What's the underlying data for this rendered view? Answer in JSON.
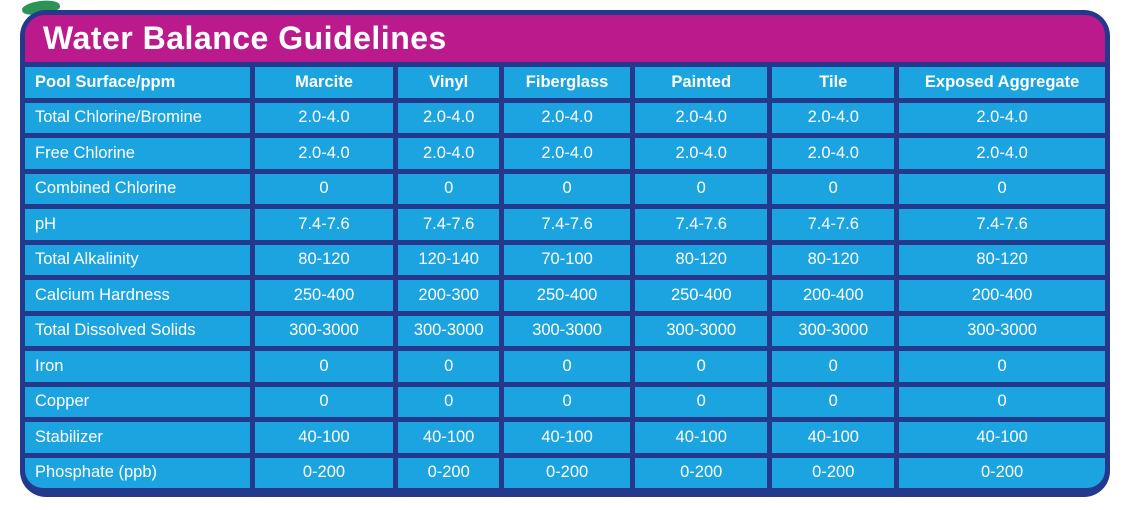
{
  "title": "Water Balance Guidelines",
  "colors": {
    "magenta": "#bb1a8c",
    "cell_blue": "#1ba4e0",
    "navy_border": "#24398c",
    "text": "#ffffff",
    "green_sliver": "#2e9456"
  },
  "table": {
    "columns": [
      "Pool Surface/ppm",
      "Marcite",
      "Vinyl",
      "Fiberglass",
      "Painted",
      "Tile",
      "Exposed Aggregate"
    ],
    "rows": [
      {
        "label": "Total Chlorine/Bromine",
        "values": [
          "2.0-4.0",
          "2.0-4.0",
          "2.0-4.0",
          "2.0-4.0",
          "2.0-4.0",
          "2.0-4.0"
        ]
      },
      {
        "label": "Free Chlorine",
        "values": [
          "2.0-4.0",
          "2.0-4.0",
          "2.0-4.0",
          "2.0-4.0",
          "2.0-4.0",
          "2.0-4.0"
        ]
      },
      {
        "label": "Combined Chlorine",
        "values": [
          "0",
          "0",
          "0",
          "0",
          "0",
          "0"
        ]
      },
      {
        "label": "pH",
        "values": [
          "7.4-7.6",
          "7.4-7.6",
          "7.4-7.6",
          "7.4-7.6",
          "7.4-7.6",
          "7.4-7.6"
        ]
      },
      {
        "label": "Total Alkalinity",
        "values": [
          "80-120",
          "120-140",
          "70-100",
          "80-120",
          "80-120",
          "80-120"
        ]
      },
      {
        "label": "Calcium Hardness",
        "values": [
          "250-400",
          "200-300",
          "250-400",
          "250-400",
          "200-400",
          "200-400"
        ]
      },
      {
        "label": "Total Dissolved Solids",
        "values": [
          "300-3000",
          "300-3000",
          "300-3000",
          "300-3000",
          "300-3000",
          "300-3000"
        ]
      },
      {
        "label": "Iron",
        "values": [
          "0",
          "0",
          "0",
          "0",
          "0",
          "0"
        ]
      },
      {
        "label": "Copper",
        "values": [
          "0",
          "0",
          "0",
          "0",
          "0",
          "0"
        ]
      },
      {
        "label": "Stabilizer",
        "values": [
          "40-100",
          "40-100",
          "40-100",
          "40-100",
          "40-100",
          "40-100"
        ]
      },
      {
        "label": "Phosphate (ppb)",
        "values": [
          "0-200",
          "0-200",
          "0-200",
          "0-200",
          "0-200",
          "0-200"
        ]
      }
    ]
  }
}
